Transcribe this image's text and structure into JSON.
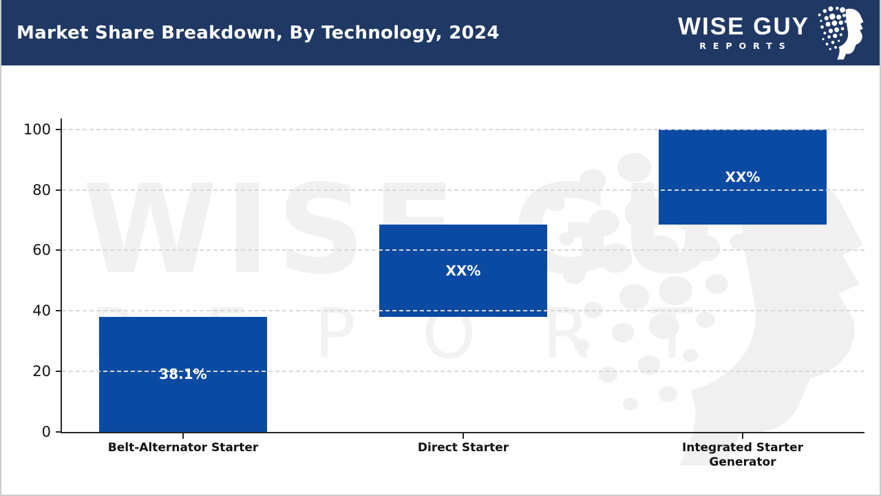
{
  "header": {
    "title": "Market Share Breakdown, By Technology, 2024",
    "logo": {
      "line1": "WISE GUY",
      "line2": "REPORTS"
    }
  },
  "watermark": {
    "line1": "WISE GUY",
    "line2": "REPORTS"
  },
  "colors": {
    "header_bg": "#1f3864",
    "bar": "#0b4aa2",
    "gridline": "#d8d8d8",
    "axis": "#262626",
    "bar_label_text": "#ffffff",
    "watermark": "#f1f1f1"
  },
  "chart_data": {
    "type": "bar",
    "subtype": "waterfall",
    "title": "Market Share Breakdown, By Technology, 2024",
    "xlabel": "",
    "ylabel": "",
    "categories": [
      "Belt-Alternator Starter",
      "Direct Starter",
      "Integrated Starter Generator"
    ],
    "series": [
      {
        "name": "Market Share (%)",
        "segments": [
          {
            "category": "Belt-Alternator Starter",
            "start": 0,
            "end": 38.1,
            "label": "38.1%"
          },
          {
            "category": "Direct Starter",
            "start": 38.1,
            "end": 68.6,
            "label": "XX%"
          },
          {
            "category": "Integrated Starter Generator",
            "start": 68.6,
            "end": 100,
            "label": "XX%"
          }
        ]
      }
    ],
    "yticks": [
      0,
      20,
      40,
      60,
      80,
      100
    ],
    "ylim": [
      0,
      103.6
    ],
    "grid": "horizontal-dashed",
    "legend": "none"
  }
}
